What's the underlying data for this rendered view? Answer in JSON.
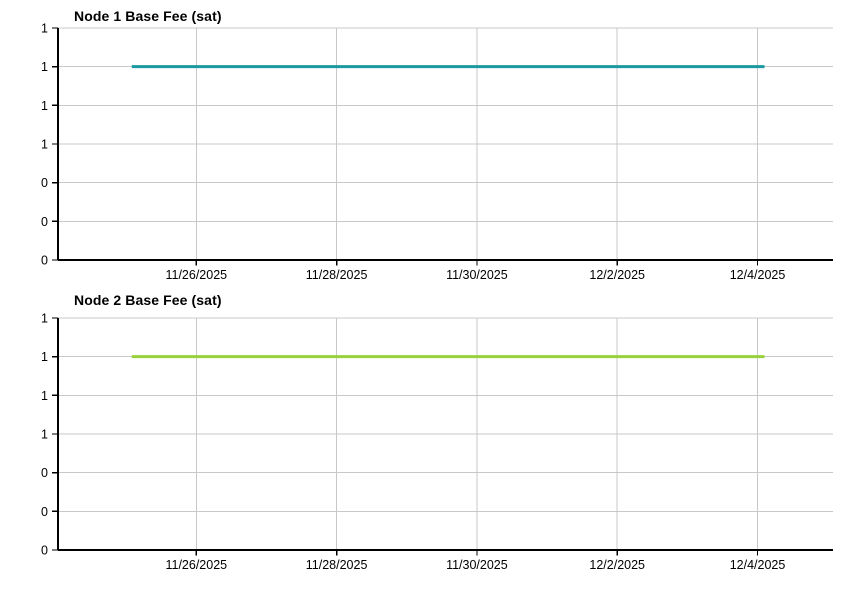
{
  "colors": {
    "background": "#ffffff",
    "axis": "#000000",
    "grid": "#c8c8c8",
    "text": "#000000",
    "node1_line": "#1a9aa0",
    "node2_line": "#99d13c"
  },
  "chart_data": [
    {
      "type": "line",
      "title": "Node 1 Base Fee (sat)",
      "xlabel": "",
      "ylabel": "",
      "ylim": [
        0,
        1.2
      ],
      "y_ticks": [
        1.2,
        1.0,
        0.8,
        0.6,
        0.4,
        0.2,
        0
      ],
      "y_tick_labels": [
        "1",
        "1",
        "1",
        "1",
        "0",
        "0",
        "0"
      ],
      "x_tick_labels": [
        "11/26/2025",
        "11/28/2025",
        "11/30/2025",
        "12/2/2025",
        "12/4/2025"
      ],
      "x_tick_interval_days": 2,
      "grid": true,
      "legend": false,
      "line_color": "#1a9aa0",
      "series": [
        {
          "name": "Node 1 base fee",
          "constant_value_sat": 1,
          "points": [
            {
              "date": "11/25/2025",
              "day_offset_from_first_tick": -0.92,
              "value": 1
            },
            {
              "date": "12/4/2025",
              "day_offset_from_first_tick": 8.1,
              "value": 1
            }
          ]
        }
      ]
    },
    {
      "type": "line",
      "title": "Node 2 Base Fee (sat)",
      "xlabel": "",
      "ylabel": "",
      "ylim": [
        0,
        1.2
      ],
      "y_ticks": [
        1.2,
        1.0,
        0.8,
        0.6,
        0.4,
        0.2,
        0
      ],
      "y_tick_labels": [
        "1",
        "1",
        "1",
        "1",
        "0",
        "0",
        "0"
      ],
      "x_tick_labels": [
        "11/26/2025",
        "11/28/2025",
        "11/30/2025",
        "12/2/2025",
        "12/4/2025"
      ],
      "x_tick_interval_days": 2,
      "grid": true,
      "legend": false,
      "line_color": "#99d13c",
      "series": [
        {
          "name": "Node 2 base fee",
          "constant_value_sat": 1,
          "points": [
            {
              "date": "11/25/2025",
              "day_offset_from_first_tick": -0.92,
              "value": 1
            },
            {
              "date": "12/4/2025",
              "day_offset_from_first_tick": 8.1,
              "value": 1
            }
          ]
        }
      ]
    }
  ]
}
